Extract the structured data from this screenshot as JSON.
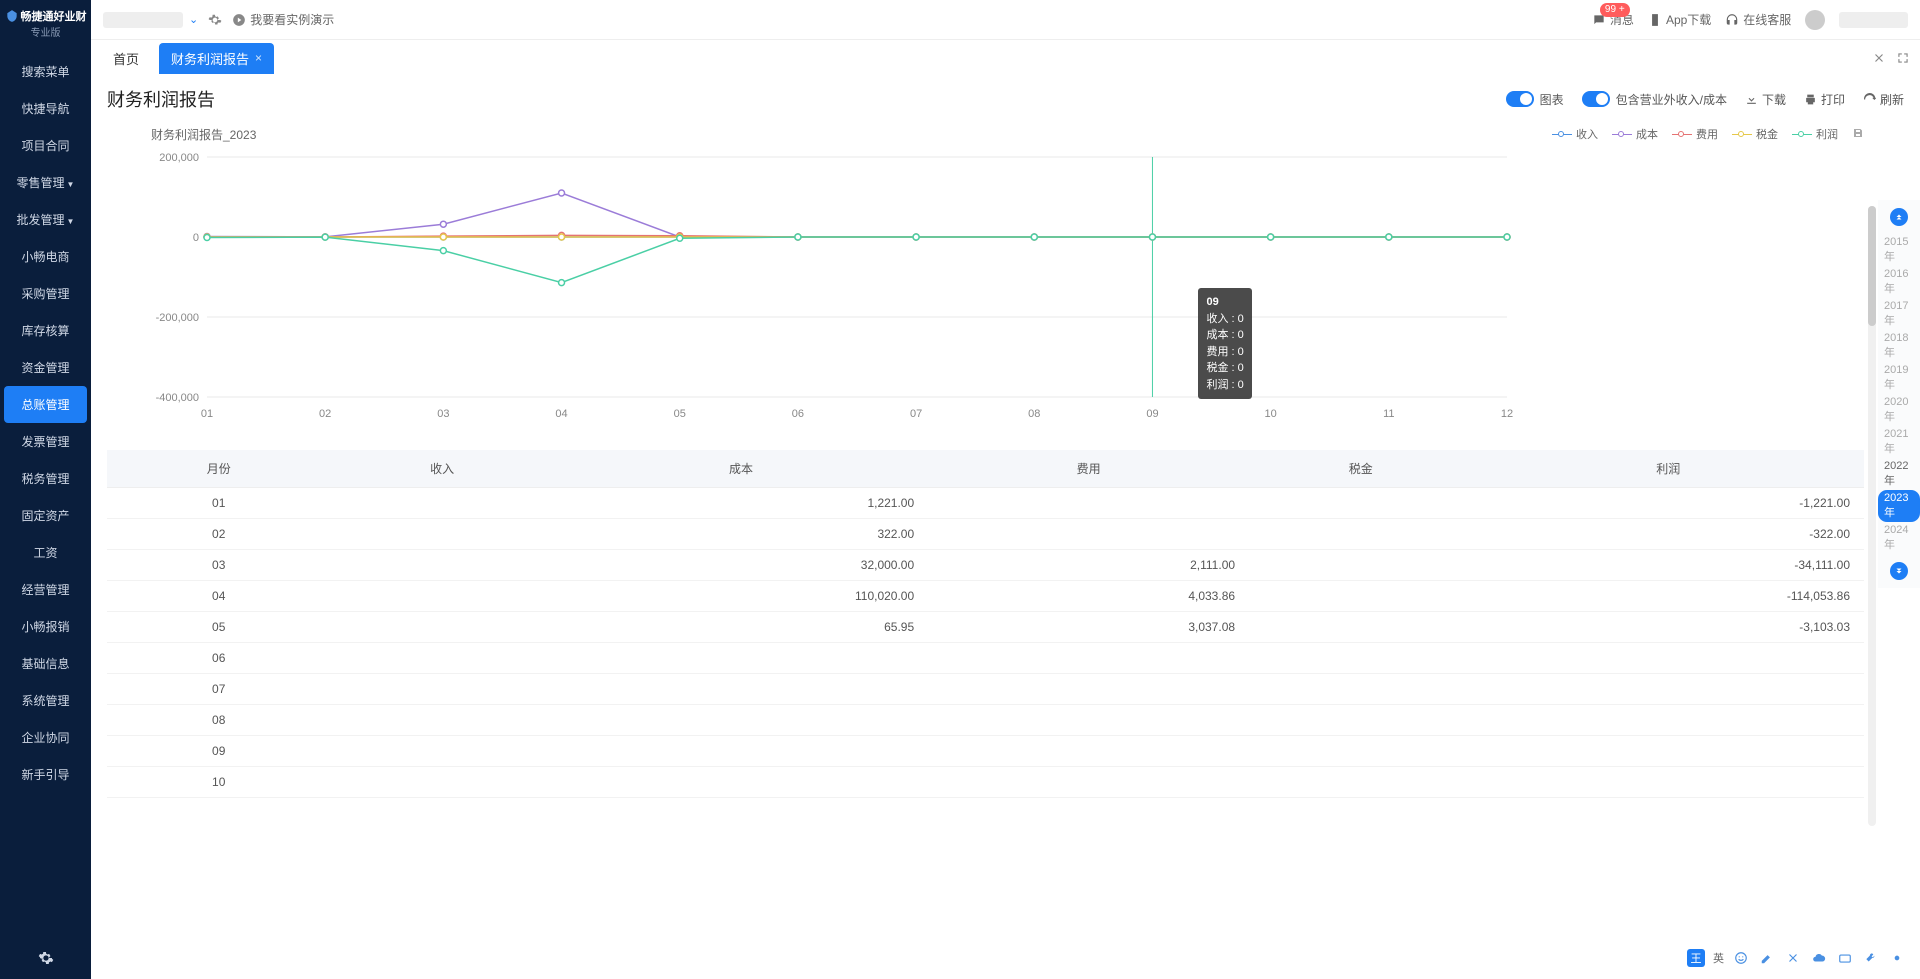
{
  "brand": {
    "name": "畅捷通好业财",
    "edition": "专业版"
  },
  "topbar": {
    "demo_label": "我要看实例演示",
    "msg_label": "消息",
    "msg_badge": "99 +",
    "app_label": "App下载",
    "cs_label": "在线客服"
  },
  "sidebar": {
    "items": [
      {
        "label": "搜索菜单",
        "active": false
      },
      {
        "label": "快捷导航",
        "active": false
      },
      {
        "label": "项目合同",
        "active": false
      },
      {
        "label": "零售管理",
        "active": false,
        "caret": true
      },
      {
        "label": "批发管理",
        "active": false,
        "caret": true
      },
      {
        "label": "小畅电商",
        "active": false
      },
      {
        "label": "采购管理",
        "active": false
      },
      {
        "label": "库存核算",
        "active": false
      },
      {
        "label": "资金管理",
        "active": false
      },
      {
        "label": "总账管理",
        "active": true
      },
      {
        "label": "发票管理",
        "active": false
      },
      {
        "label": "税务管理",
        "active": false
      },
      {
        "label": "固定资产",
        "active": false
      },
      {
        "label": "工资",
        "active": false
      },
      {
        "label": "经营管理",
        "active": false
      },
      {
        "label": "小畅报销",
        "active": false
      },
      {
        "label": "基础信息",
        "active": false
      },
      {
        "label": "系统管理",
        "active": false
      },
      {
        "label": "企业协同",
        "active": false
      },
      {
        "label": "新手引导",
        "active": false
      }
    ]
  },
  "tabs": {
    "home": "首页",
    "active": "财务利润报告"
  },
  "page": {
    "title": "财务利润报告",
    "toggle_chart": "图表",
    "toggle_extra": "包含营业外收入/成本",
    "download": "下载",
    "print": "打印",
    "refresh": "刷新"
  },
  "chart": {
    "title": "财务利润报告_2023",
    "type": "line",
    "x_labels": [
      "01",
      "02",
      "03",
      "04",
      "05",
      "06",
      "07",
      "08",
      "09",
      "10",
      "11",
      "12"
    ],
    "y_ticks": [
      -400000,
      -200000,
      0,
      200000
    ],
    "y_tick_labels": [
      "-400,000",
      "-200,000",
      "0",
      "200,000"
    ],
    "ylim": [
      -400000,
      200000
    ],
    "grid_color": "#e8e8e8",
    "axis_color": "#888",
    "series": [
      {
        "name": "收入",
        "color": "#4a90e2",
        "values": [
          0,
          0,
          0,
          0,
          0,
          0,
          0,
          0,
          0,
          0,
          0,
          0
        ]
      },
      {
        "name": "成本",
        "color": "#9b7cd8",
        "values": [
          1221,
          322,
          32000,
          110020,
          65.95,
          0,
          0,
          0,
          0,
          0,
          0,
          0
        ]
      },
      {
        "name": "费用",
        "color": "#e57373",
        "values": [
          0,
          0,
          2111,
          4033.86,
          3037.08,
          0,
          0,
          0,
          0,
          0,
          0,
          0
        ]
      },
      {
        "name": "税金",
        "color": "#e6c84a",
        "values": [
          0,
          0,
          0,
          0,
          0,
          0,
          0,
          0,
          0,
          0,
          0,
          0
        ]
      },
      {
        "name": "利润",
        "color": "#4acfa5",
        "values": [
          -1221,
          -322,
          -34111,
          -114053.86,
          -3103.03,
          0,
          0,
          0,
          0,
          0,
          0,
          0
        ]
      }
    ],
    "tooltip": {
      "x_index": 8,
      "title": "09",
      "rows": [
        "收入 : 0",
        "成本 : 0",
        "费用 : 0",
        "税金 : 0",
        "利润 : 0"
      ]
    }
  },
  "table": {
    "columns": [
      "月份",
      "收入",
      "成本",
      "费用",
      "税金",
      "利润"
    ],
    "col_align": [
      "center",
      "right",
      "right",
      "right",
      "right",
      "right"
    ],
    "rows": [
      [
        "01",
        "",
        "1,221.00",
        "",
        "",
        "-1,221.00"
      ],
      [
        "02",
        "",
        "322.00",
        "",
        "",
        "-322.00"
      ],
      [
        "03",
        "",
        "32,000.00",
        "2,111.00",
        "",
        "-34,111.00"
      ],
      [
        "04",
        "",
        "110,020.00",
        "4,033.86",
        "",
        "-114,053.86"
      ],
      [
        "05",
        "",
        "65.95",
        "3,037.08",
        "",
        "-3,103.03"
      ],
      [
        "06",
        "",
        "",
        "",
        "",
        ""
      ],
      [
        "07",
        "",
        "",
        "",
        "",
        ""
      ],
      [
        "08",
        "",
        "",
        "",
        "",
        ""
      ],
      [
        "09",
        "",
        "",
        "",
        "",
        ""
      ],
      [
        "10",
        "",
        "",
        "",
        "",
        ""
      ]
    ]
  },
  "years": {
    "list": [
      "2015年",
      "2016年",
      "2017年",
      "2018年",
      "2019年",
      "2020年",
      "2021年",
      "2022年",
      "2023年",
      "2024年"
    ],
    "active": "2023年"
  },
  "floatbar": {
    "ime": "英"
  }
}
